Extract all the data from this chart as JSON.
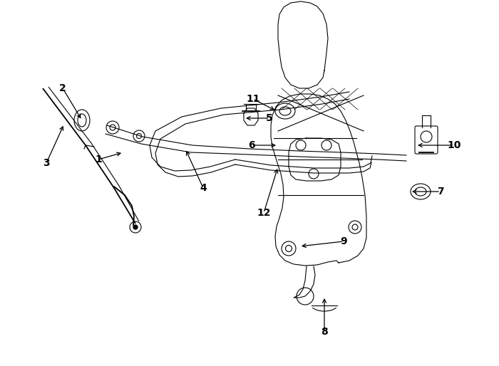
{
  "background_color": "#ffffff",
  "line_color": "#000000",
  "fig_width": 7.0,
  "fig_height": 5.14,
  "dpi": 100
}
